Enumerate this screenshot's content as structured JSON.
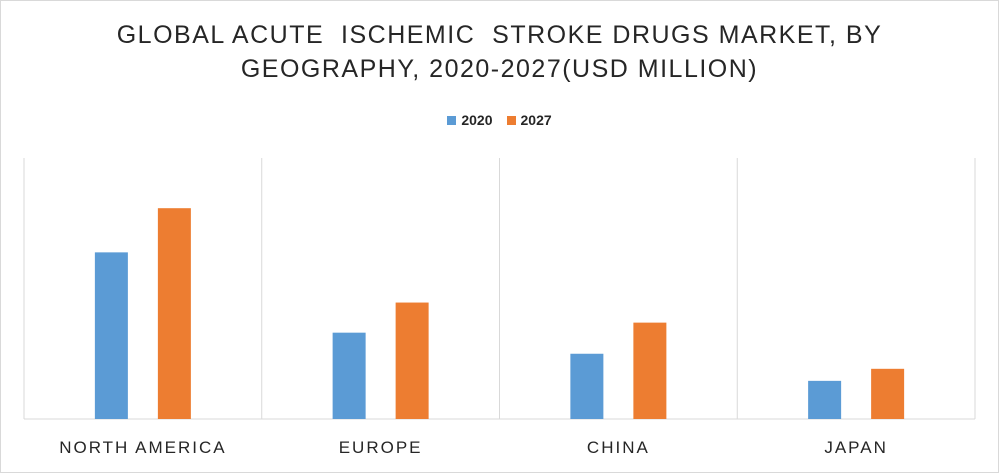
{
  "chart_data": {
    "type": "bar",
    "title_lines": [
      "GLOBAL ACUTE  ISCHEMIC  STROKE DRUGS MARKET, BY",
      "GEOGRAPHY, 2020-2027(USD MILLION)"
    ],
    "categories": [
      "NORTH AMERICA",
      "EUROPE",
      "CHINA",
      "JAPAN"
    ],
    "series": [
      {
        "name": "2020",
        "values": [
          166,
          86,
          65,
          38
        ]
      },
      {
        "name": "2027",
        "values": [
          210,
          116,
          96,
          50
        ]
      }
    ],
    "ylim": [
      0,
      260
    ],
    "grid": "vertical category separators",
    "legend_position": "top",
    "colors": {
      "2020": "#5b9bd5",
      "2027": "#ed7d31"
    }
  }
}
